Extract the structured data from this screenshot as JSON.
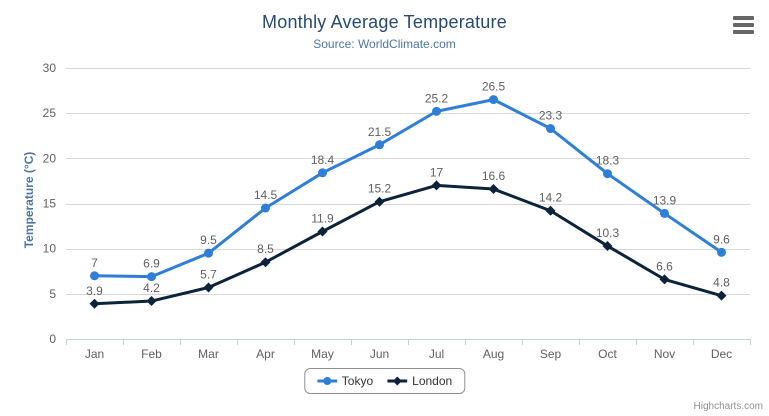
{
  "chart": {
    "title": "Monthly Average Temperature",
    "subtitle": "Source: WorldClimate.com",
    "y_axis_title": "Temperature (°C)",
    "credits": "Highcharts.com"
  },
  "export_menu": {
    "icon": "hamburger-icon"
  },
  "colors": {
    "tokyo_series": "#2f7ed8",
    "london_series": "#0d233a",
    "gridline": "#d8d8d8",
    "axis_line": "#c0d0e0",
    "tick_label": "#606060",
    "data_label": "#606060",
    "title_text": "#274b6d",
    "subtitle_text": "#4d759e",
    "legend_border": "#909090"
  },
  "chart_data": {
    "type": "line",
    "title": "Monthly Average Temperature",
    "subtitle": "Source: WorldClimate.com",
    "xlabel": "",
    "ylabel": "Temperature (°C)",
    "categories": [
      "Jan",
      "Feb",
      "Mar",
      "Apr",
      "May",
      "Jun",
      "Jul",
      "Aug",
      "Sep",
      "Oct",
      "Nov",
      "Dec"
    ],
    "series": [
      {
        "name": "Tokyo",
        "color": "#2f7ed8",
        "marker": "circle",
        "values": [
          7,
          6.9,
          9.5,
          14.5,
          18.4,
          21.5,
          25.2,
          26.5,
          23.3,
          18.3,
          13.9,
          9.6
        ]
      },
      {
        "name": "London",
        "color": "#0d233a",
        "marker": "diamond",
        "values": [
          3.9,
          4.2,
          5.7,
          8.5,
          11.9,
          15.2,
          17,
          16.6,
          14.2,
          10.3,
          6.6,
          4.8
        ]
      }
    ],
    "ylim": [
      0,
      30
    ],
    "ytick_interval": 5,
    "grid": "horizontal",
    "data_labels_visible": true,
    "legend_position": "bottom"
  },
  "legend": {
    "items": [
      {
        "label": "Tokyo"
      },
      {
        "label": "London"
      }
    ]
  }
}
